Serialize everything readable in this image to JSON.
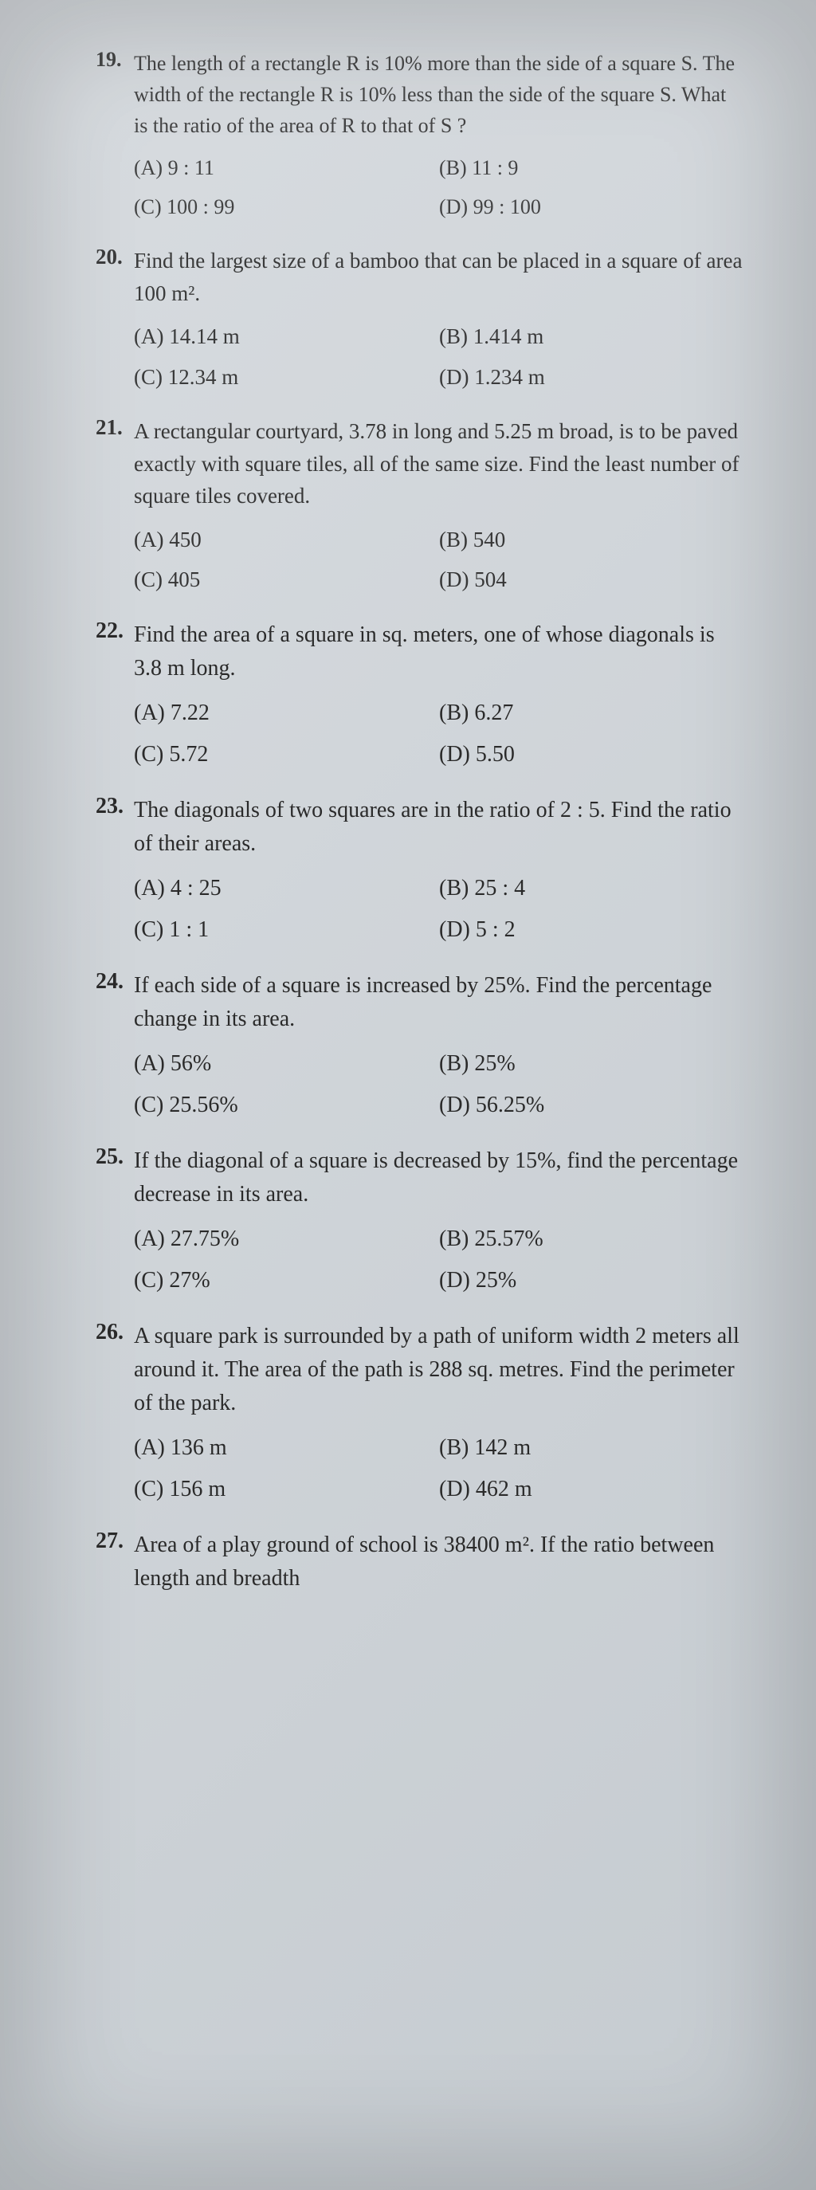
{
  "questions": [
    {
      "number": "19.",
      "text": "The length of a rectangle R is 10% more than the side of a square S. The width of the rectangle R is 10% less than the side of the square S. What is the ratio of the area of R to that of S ?",
      "options": {
        "A": "(A) 9 : 11",
        "B": "(B) 11 : 9",
        "C": "(C) 100 : 99",
        "D": "(D) 99 : 100"
      }
    },
    {
      "number": "20.",
      "text": "Find the largest size of a bamboo that can be placed in a square of area 100 m².",
      "options": {
        "A": "(A) 14.14 m",
        "B": "(B) 1.414 m",
        "C": "(C) 12.34 m",
        "D": "(D) 1.234 m"
      }
    },
    {
      "number": "21.",
      "text": "A rectangular courtyard, 3.78 in long and 5.25 m broad, is to be paved exactly with square tiles, all of the same size. Find the least number of square tiles covered.",
      "options": {
        "A": "(A) 450",
        "B": "(B) 540",
        "C": "(C) 405",
        "D": "(D) 504"
      }
    },
    {
      "number": "22.",
      "text": "Find the area of a square in sq. meters, one of whose diagonals is 3.8 m long.",
      "options": {
        "A": "(A) 7.22",
        "B": "(B) 6.27",
        "C": "(C) 5.72",
        "D": "(D) 5.50"
      }
    },
    {
      "number": "23.",
      "text": "The diagonals of two squares are in the ratio of 2 : 5. Find the ratio of their areas.",
      "options": {
        "A": "(A) 4 : 25",
        "B": "(B) 25 : 4",
        "C": "(C) 1 : 1",
        "D": "(D) 5 : 2"
      }
    },
    {
      "number": "24.",
      "text": "If each side of a square is increased by 25%. Find the percentage change in its area.",
      "options": {
        "A": "(A) 56%",
        "B": "(B) 25%",
        "C": "(C) 25.56%",
        "D": "(D) 56.25%"
      }
    },
    {
      "number": "25.",
      "text": "If the diagonal of a square is decreased by 15%, find the percentage decrease in its area.",
      "options": {
        "A": "(A) 27.75%",
        "B": "(B) 25.57%",
        "C": "(C) 27%",
        "D": "(D) 25%"
      }
    },
    {
      "number": "26.",
      "text": "A square park is surrounded by a path of uniform width 2 meters all around it. The area of the path is 288 sq. metres. Find the perimeter of the park.",
      "options": {
        "A": "(A) 136 m",
        "B": "(B) 142 m",
        "C": "(C) 156 m",
        "D": "(D) 462 m"
      }
    },
    {
      "number": "27.",
      "text": "Area of a play ground of school is 38400 m². If the ratio between length and breadth",
      "options": null
    }
  ]
}
